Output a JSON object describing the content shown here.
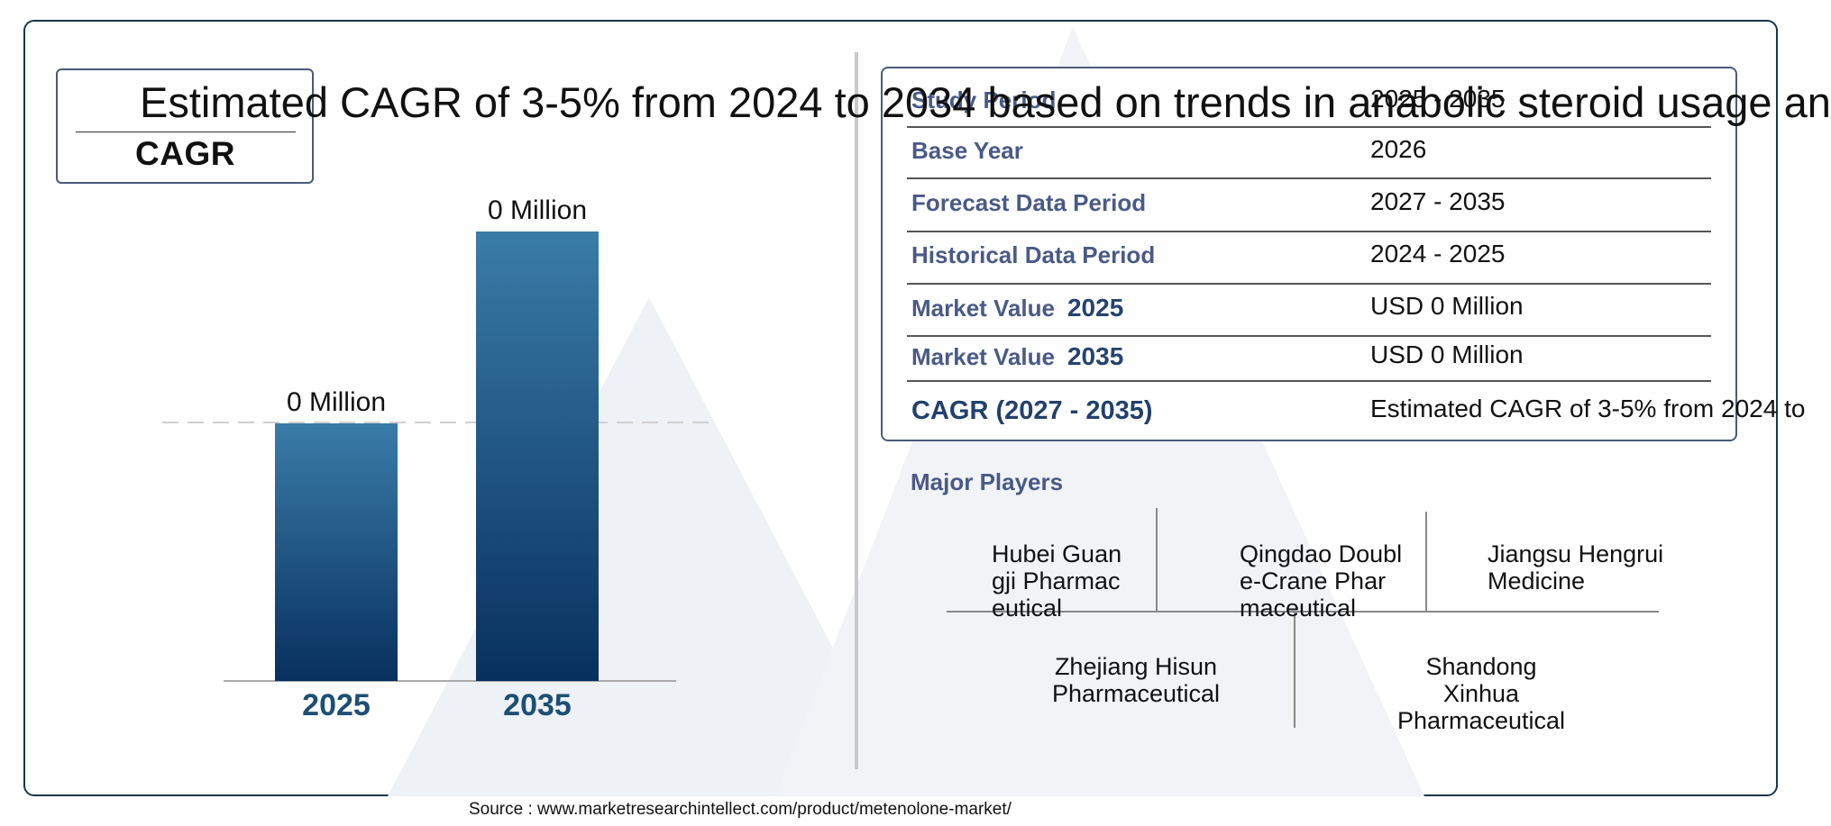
{
  "headline": "Estimated CAGR of 3-5% from 2024 to 2034 based on trends in anabolic steroid usage an",
  "cagr_box_label": "CAGR",
  "chart_data": {
    "type": "bar",
    "categories": [
      "2025",
      "2035"
    ],
    "values": [
      0,
      0
    ],
    "value_labels": [
      "0 Million",
      "0 Million"
    ],
    "title": "",
    "xlabel": "",
    "ylabel": "",
    "colors": {
      "bar_top": "#3a7ca8",
      "bar_bottom": "#08305e",
      "tick_label": "#1d4f73"
    }
  },
  "table": {
    "rows": [
      {
        "label": "Study Period",
        "year": "",
        "value": "2025 - 2035"
      },
      {
        "label": "Base Year",
        "year": "",
        "value": "2026"
      },
      {
        "label": "Forecast Data Period",
        "year": "",
        "value": "2027 - 2035"
      },
      {
        "label": "Historical Data Period",
        "year": "",
        "value": "2024 - 2025"
      },
      {
        "label": "Market Value",
        "year": "2025",
        "value": "USD 0 Million"
      },
      {
        "label": "Market Value",
        "year": "2035",
        "value": "USD 0 Million"
      },
      {
        "label": "CAGR (2027 - 2035)",
        "year": "",
        "value": "Estimated CAGR of 3-5% from 2024 to"
      }
    ]
  },
  "major_players": {
    "title": "Major Players",
    "players": [
      "Hubei Guangji Pharmaceutical",
      "Qingdao Double-Crane Pharmaceutical",
      "Jiangsu Hengrui Medicine",
      "Zhejiang Hisun Pharmaceutical",
      "Shandong Xinhua Pharmaceutical"
    ]
  },
  "source": "Source : www.marketresearchintellect.com/product/metenolone-market/"
}
